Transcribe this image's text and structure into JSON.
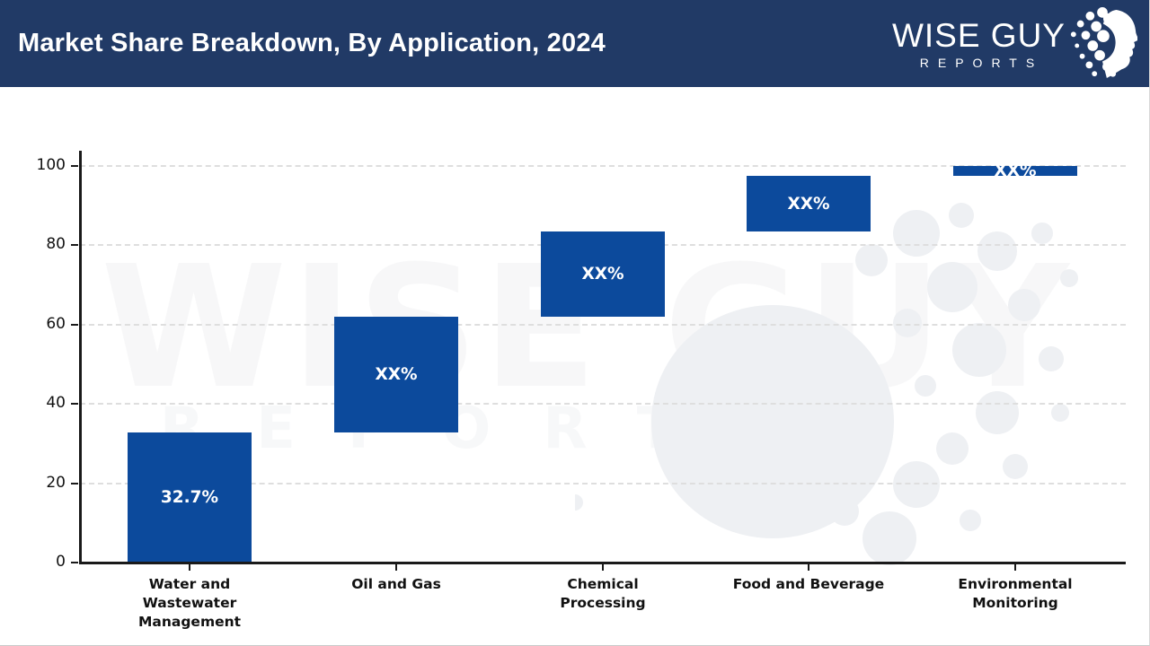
{
  "header": {
    "title": "Market Share Breakdown, By Application, 2024",
    "logo": {
      "name": "WISE GUY",
      "sub": "REPORTS"
    }
  },
  "watermark": {
    "line1": "WISE GUY",
    "line2": "REPORTS"
  },
  "chart_data": {
    "type": "bar",
    "subtype": "waterfall-stacked",
    "title": "Market Share Breakdown, By Application, 2024",
    "ylim": [
      0,
      100
    ],
    "yticks": [
      0,
      20,
      40,
      60,
      80,
      100
    ],
    "grid": "horizontal-dashed",
    "legend": "none",
    "bar_color": "#0c4a9c",
    "bar_label_color": "#ffffff",
    "categories": [
      "Water and Wastewater Management",
      "Oil and Gas",
      "Chemical Processing",
      "Food and Beverage",
      "Environmental Monitoring"
    ],
    "category_lines": [
      [
        "Water and",
        "Wastewater",
        "Management"
      ],
      [
        "Oil and Gas"
      ],
      [
        "Chemical",
        "Processing"
      ],
      [
        "Food and Beverage"
      ],
      [
        "Environmental",
        "Monitoring"
      ]
    ],
    "segments": [
      {
        "category": "Water and Wastewater Management",
        "start": 0,
        "end": 32.7,
        "label": "32.7%"
      },
      {
        "category": "Oil and Gas",
        "start": 32.7,
        "end": 62.1,
        "label": "XX%"
      },
      {
        "category": "Chemical Processing",
        "start": 62.1,
        "end": 83.4,
        "label": "XX%"
      },
      {
        "category": "Food and Beverage",
        "start": 83.4,
        "end": 97.4,
        "label": "XX%"
      },
      {
        "category": "Environmental Monitoring",
        "start": 97.4,
        "end": 100,
        "label": "XX%"
      }
    ]
  }
}
